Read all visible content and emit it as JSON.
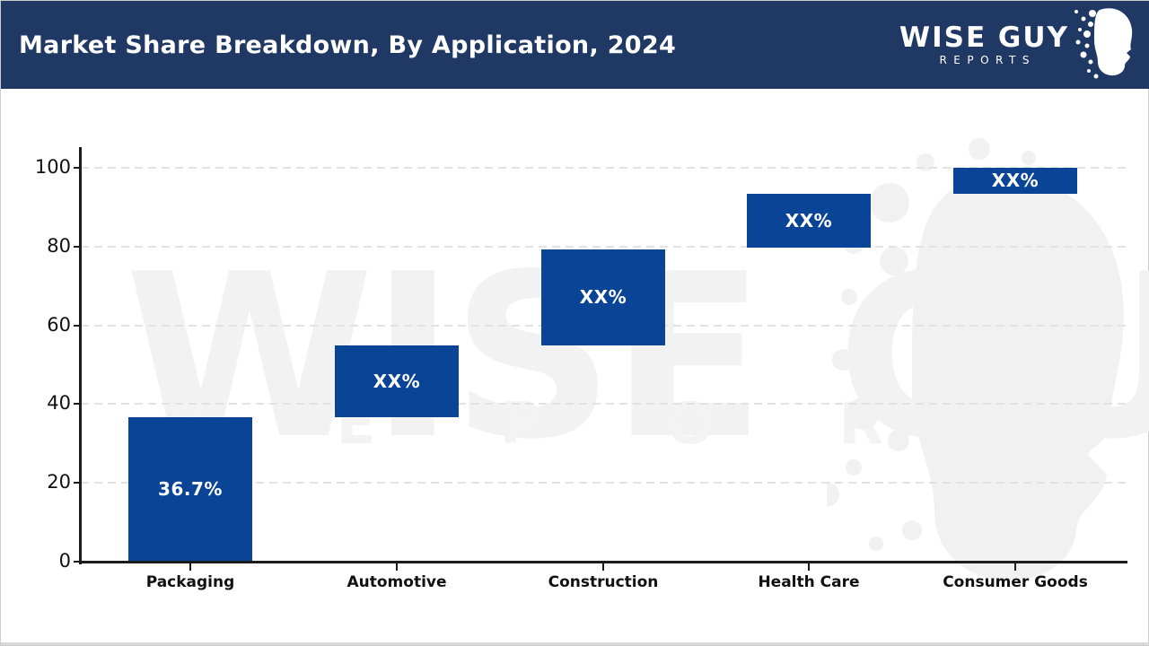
{
  "header": {
    "title": "Market Share Breakdown, By Application, 2024",
    "logo": {
      "line1": "WISE GUY",
      "line2": "REPORTS"
    }
  },
  "chart_data": {
    "type": "bar",
    "variant": "waterfall",
    "title": "Market Share Breakdown, By Application, 2024",
    "categories": [
      "Packaging",
      "Automotive",
      "Construction",
      "Health Care",
      "Consumer Goods"
    ],
    "segments": [
      {
        "category": "Packaging",
        "start": 0,
        "end": 36.7,
        "label": "36.7%"
      },
      {
        "category": "Automotive",
        "start": 36.7,
        "end": 55.0,
        "label": "XX%"
      },
      {
        "category": "Construction",
        "start": 55.0,
        "end": 79.3,
        "label": "XX%"
      },
      {
        "category": "Health Care",
        "start": 79.8,
        "end": 93.5,
        "label": "XX%"
      },
      {
        "category": "Consumer Goods",
        "start": 93.4,
        "end": 100.1,
        "label": "XX%"
      }
    ],
    "yticks": [
      0,
      20,
      40,
      60,
      80,
      100
    ],
    "ylim": [
      0,
      105
    ],
    "xlabel": "",
    "ylabel": "",
    "grid": true,
    "legend": null,
    "bar_color": "#0a4496",
    "watermark": {
      "line1": "WISE GUY",
      "line2": "R E P O R T S"
    }
  },
  "colors": {
    "header_background": "#203864",
    "bar_blue": "#0a4496",
    "label_text": "#ffffff",
    "axis_text": "#111111",
    "watermark_gray": "#f2f2f2"
  }
}
